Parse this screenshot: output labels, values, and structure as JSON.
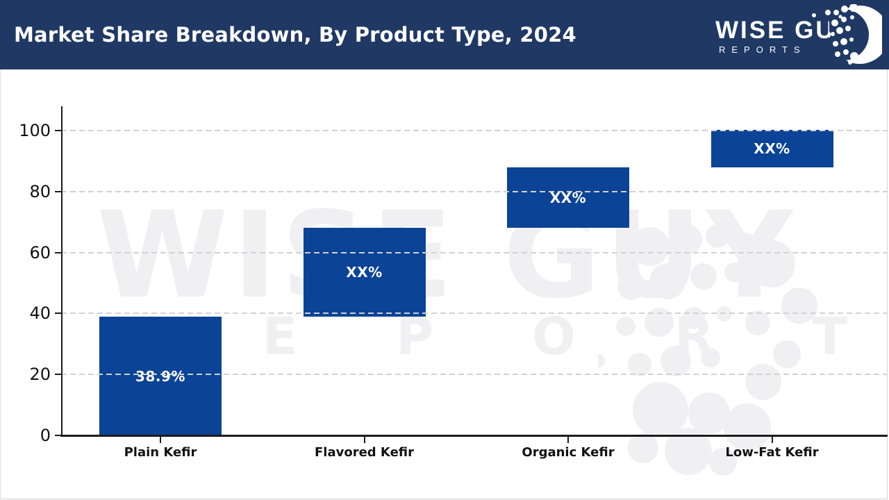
{
  "header": {
    "title": "Market Share Breakdown, By Product Type, 2024",
    "logo": {
      "line1": "WISE GUY",
      "line2": "REPORTS",
      "head_icon": "dotted-face-profile"
    },
    "background_color": "#1f3864"
  },
  "watermark": {
    "line1": "WISE GUY",
    "line2": "REPORTS",
    "color": "#f0f0f2"
  },
  "chart_data": {
    "type": "bar",
    "subtype": "waterfall-floating-bars",
    "title": "Market Share Breakdown, By Product Type, 2024",
    "categories": [
      "Plain Kefir",
      "Flavored Kefir",
      "Organic Kefir",
      "Low-Fat Kefir"
    ],
    "segments": [
      {
        "category": "Plain Kefir",
        "start": 0,
        "end": 38.9,
        "label": "38.9%"
      },
      {
        "category": "Flavored Kefir",
        "start": 38.9,
        "end": 68.1,
        "label": "XX%"
      },
      {
        "category": "Organic Kefir",
        "start": 68.1,
        "end": 87.9,
        "label": "XX%"
      },
      {
        "category": "Low-Fat Kefir",
        "start": 87.9,
        "end": 100.3,
        "label": "XX%"
      }
    ],
    "xlabel": "",
    "ylabel": "",
    "ylim": [
      0,
      107.5
    ],
    "yticks": [
      0,
      20,
      40,
      60,
      80,
      100
    ],
    "grid": "horizontal dashed",
    "legend": "none",
    "bar_color": "#0b4397",
    "bar_label_color": "#ffffff",
    "axis_color": "#1c1c1c"
  }
}
